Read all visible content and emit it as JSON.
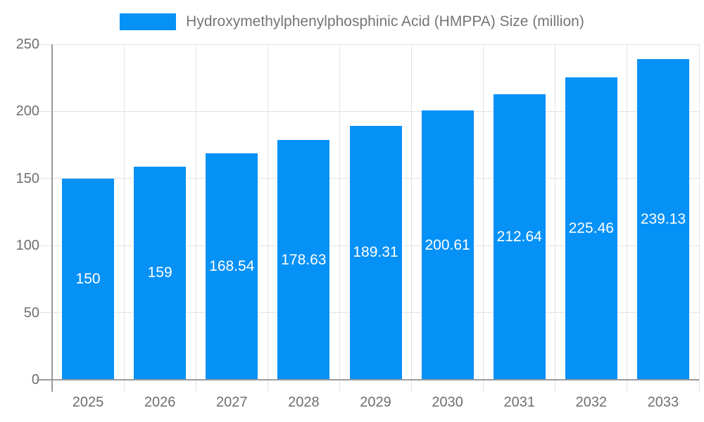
{
  "chart_data": {
    "type": "bar",
    "title": "Hydroxymethylphenylphosphinic Acid (HMPPA) Size (million)",
    "categories": [
      "2025",
      "2026",
      "2027",
      "2028",
      "2029",
      "2030",
      "2031",
      "2032",
      "2033"
    ],
    "values": [
      150,
      159,
      168.54,
      178.63,
      189.31,
      200.61,
      212.64,
      225.46,
      239.13
    ],
    "value_labels": [
      "150",
      "159",
      "168.54",
      "178.63",
      "189.31",
      "200.61",
      "212.64",
      "225.46",
      "239.13"
    ],
    "xlabel": "",
    "ylabel": "",
    "ylim": [
      0,
      250
    ],
    "yticks": [
      0,
      50,
      100,
      150,
      200,
      250
    ],
    "grid": true,
    "legend_position": "top-center",
    "colors": {
      "bar": "#0691f7",
      "axis": "#9b9b9b",
      "gridline": "#e3e3e3",
      "tick_label": "#6f6f6f",
      "title_label": "#757575",
      "value_label": "#ffffff",
      "background": "#ffffff"
    }
  }
}
